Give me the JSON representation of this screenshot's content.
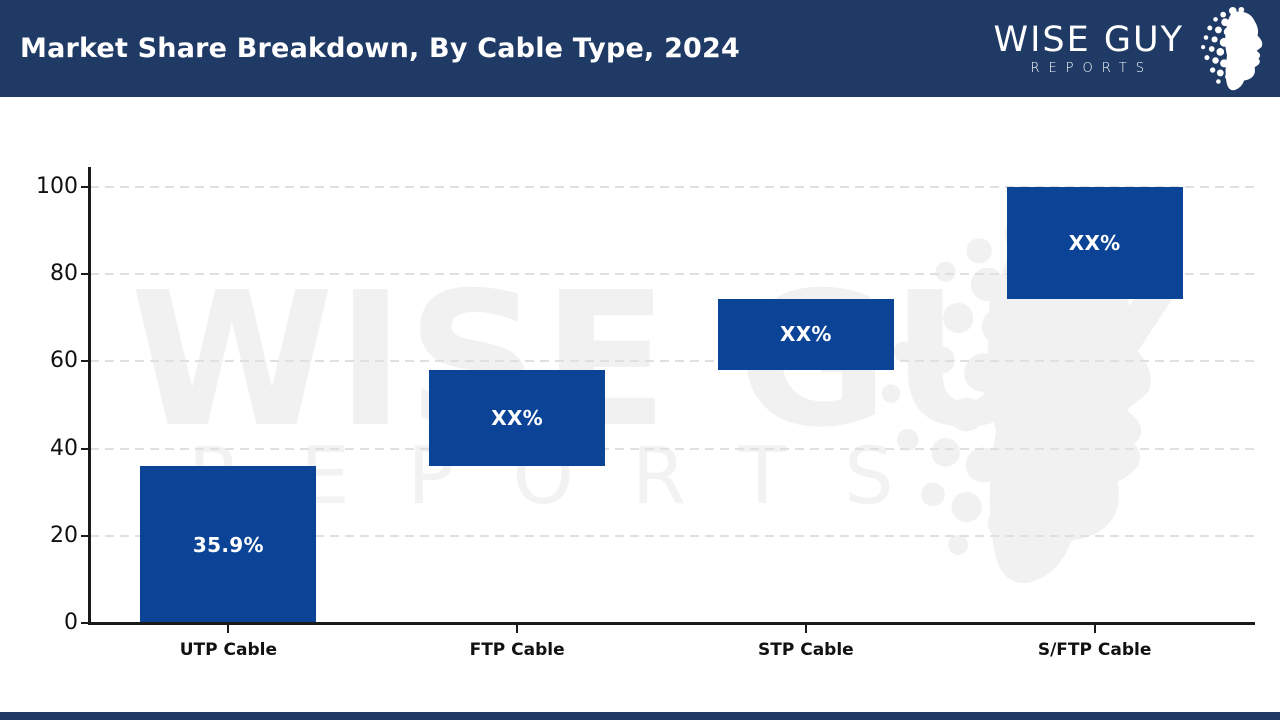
{
  "header": {
    "title": "Market Share Breakdown, By Cable Type, 2024",
    "brand": {
      "line1": "WISE GUY",
      "line2": "REPORTS"
    }
  },
  "watermark": {
    "line1": "WISE GUY",
    "line2": "REPORTS"
  },
  "colors": {
    "header_bg": "#203a66",
    "bar_fill": "#0b4397",
    "bar_label": "#ffffff",
    "gridline": "#e0e0e0",
    "axis": "#1a1a1a",
    "watermark": "#f1f1f1"
  },
  "chart_data": {
    "type": "bar",
    "subtype": "waterfall",
    "title": "Market Share Breakdown, By Cable Type, 2024",
    "xlabel": "",
    "ylabel": "",
    "ylim": [
      0,
      100
    ],
    "yticks": [
      0,
      20,
      40,
      60,
      80,
      100
    ],
    "grid": "horizontal-dashed",
    "legend": "none",
    "categories": [
      "UTP Cable",
      "FTP Cable",
      "STP Cable",
      "S/FTP Cable"
    ],
    "segments": [
      {
        "category": "UTP Cable",
        "start": 0,
        "end": 35.9,
        "label": "35.9%"
      },
      {
        "category": "FTP Cable",
        "start": 35.9,
        "end": 58.1,
        "label": "XX%"
      },
      {
        "category": "STP Cable",
        "start": 58.1,
        "end": 74.3,
        "label": "XX%"
      },
      {
        "category": "S/FTP Cable",
        "start": 74.3,
        "end": 100,
        "label": "XX%"
      }
    ]
  }
}
